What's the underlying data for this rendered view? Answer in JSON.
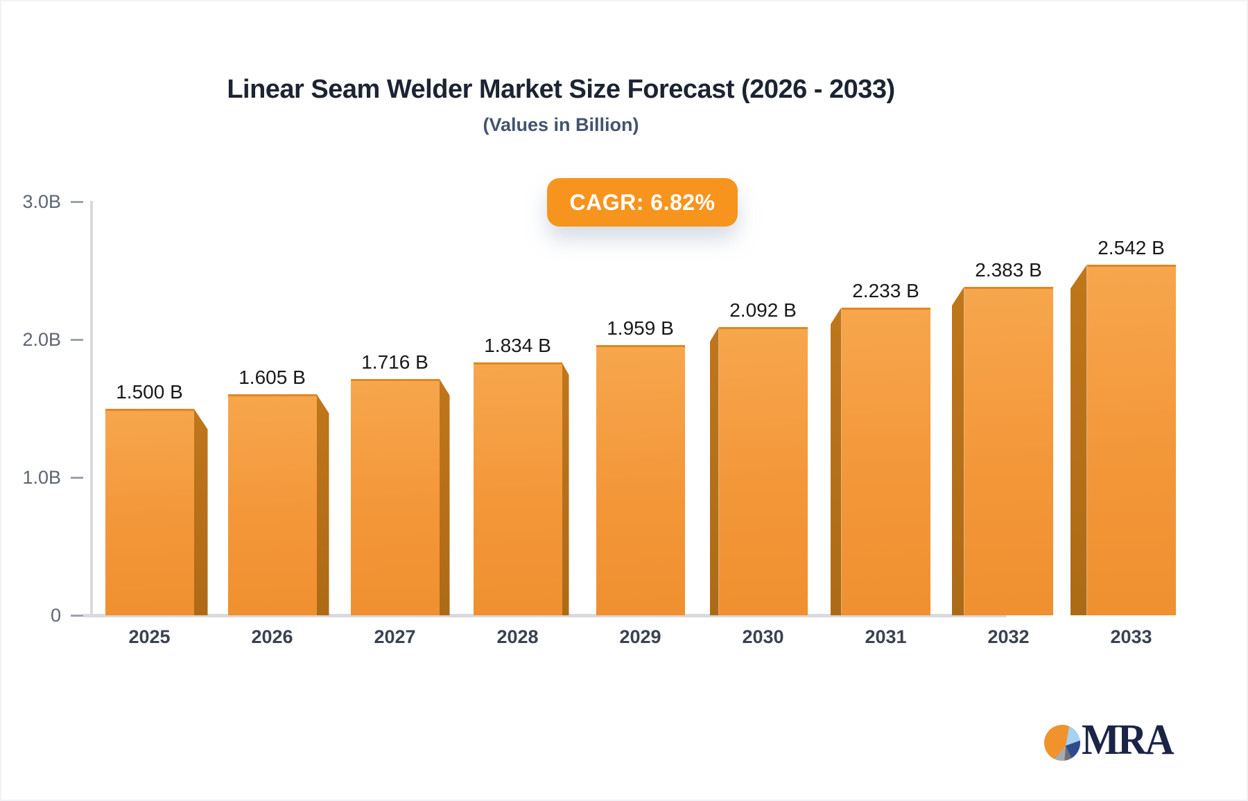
{
  "title": "Linear Seam Welder Market Size Forecast (2026 - 2033)",
  "subtitle": "(Values in Billion)",
  "badge": {
    "label": "CAGR: 6.82%"
  },
  "logo": {
    "text": "MRA"
  },
  "colors": {
    "accent": "#F7941E",
    "bar_top": "#F7A64D",
    "bar_bottom": "#F09030",
    "bar_side": "#B5701A",
    "axis": "#D9DADE",
    "tick_text": "#5D6571",
    "x_label_text": "#3A4250",
    "value_text": "#191919",
    "title_text": "#1C2331",
    "subtitle_text": "#44536E",
    "logo_navy": "#1B2447"
  },
  "chart_data": {
    "type": "bar",
    "title": "Linear Seam Welder Market Size Forecast (2026 - 2033)",
    "subtitle": "(Values in Billion)",
    "categories": [
      "2025",
      "2026",
      "2027",
      "2028",
      "2029",
      "2030",
      "2031",
      "2032",
      "2033"
    ],
    "values": [
      1.5,
      1.605,
      1.716,
      1.834,
      1.959,
      2.092,
      2.233,
      2.383,
      2.542
    ],
    "value_labels": [
      "1.500 B",
      "1.605 B",
      "1.716 B",
      "1.834 B",
      "1.959 B",
      "2.092 B",
      "2.233 B",
      "2.383 B",
      "2.542 B"
    ],
    "unit": "Billion",
    "xlabel": "",
    "ylabel": "",
    "ylim": [
      0,
      3
    ],
    "yticks": [
      {
        "label": "3.0B",
        "value": 3.0
      },
      {
        "label": "2.0B",
        "value": 2.0
      },
      {
        "label": "1.0B",
        "value": 1.0
      },
      {
        "label": "0",
        "value": 0.0
      }
    ],
    "grid": false,
    "legend": false,
    "annotation": "CAGR: 6.82%"
  }
}
